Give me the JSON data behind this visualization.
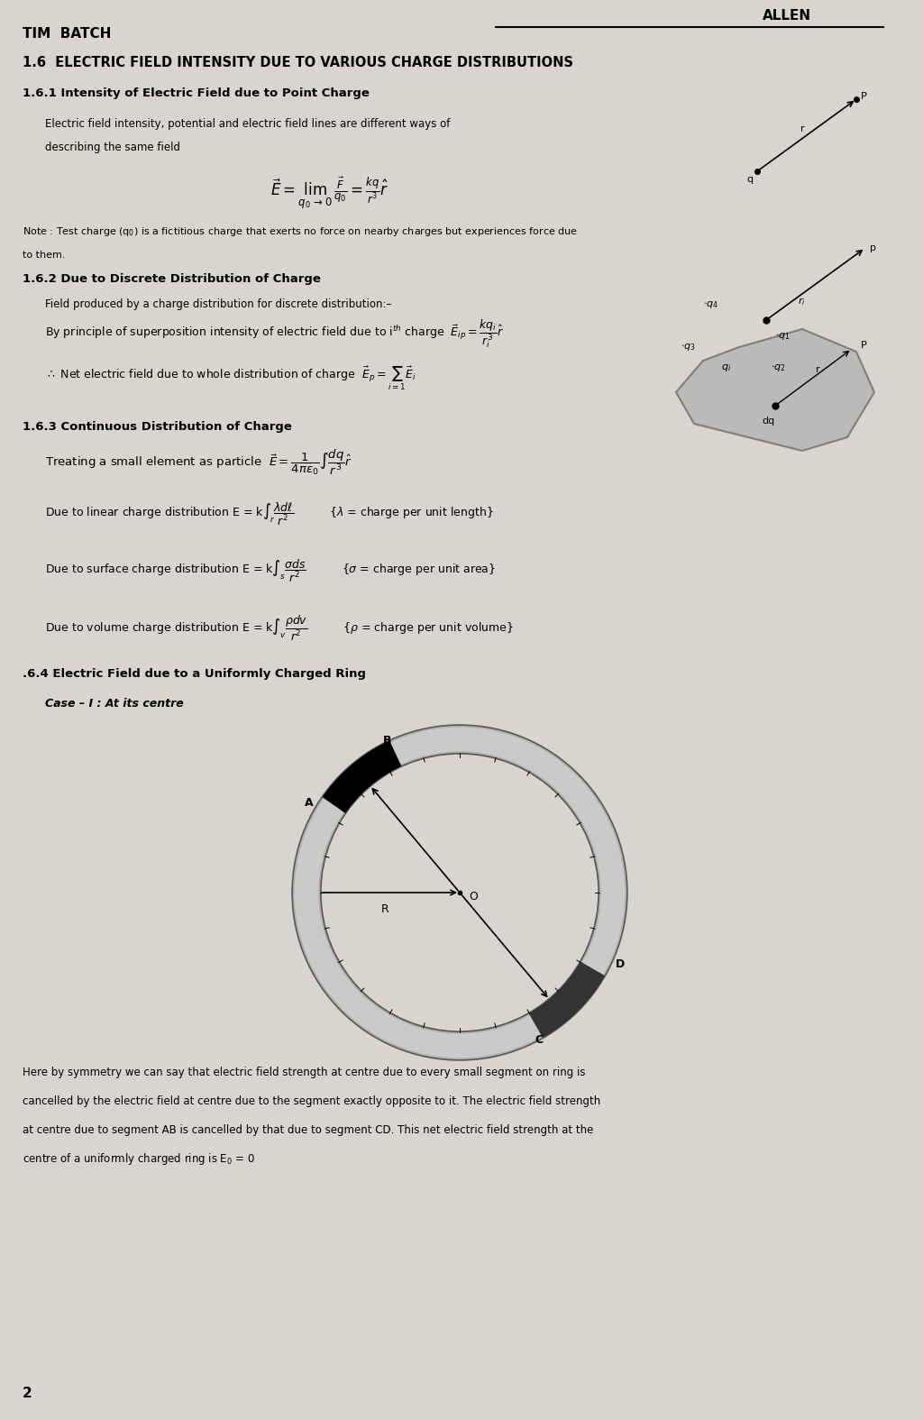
{
  "bg_color": "#d8d4ce",
  "page_bg": "#d8d4ce",
  "title_allen": "ALLEN",
  "title_batch": "TIM  BATCH",
  "header_text": "1.6  ELECTRIC FIELD INTENSITY DUE TO VARIOUS CHARGE DISTRIBUTIONS",
  "sub1": "1.6.1 Intensity of Electric Field due to Point Charge",
  "para1": "Electric field intensity, potential and electric field lines are different ways of\ndescribing the same field",
  "eq1": "$\\vec{E} = \\lim_{q_0 \\to 0} \\frac{\\vec{F}}{q_0} = \\frac{kq}{r^3}\\hat{r}$",
  "note1": "Note : Test charge (q$_0$) is a fictitious charge that exerts no force on nearby charges but experiences force due\nto them.",
  "sub2": "1.6.2 Due to Discrete Distribution of Charge",
  "para2": "Field produced by a charge distribution for discrete distribution:–",
  "eq2": "$\\vec{E}_{ip} = \\frac{kq_i}{r_i^3}\\hat{r}$",
  "para2b": "By principle of superposition intensity of electric field due to i$^{th}$ charge  $\\vec{E}_{ip} = \\frac{kq_i}{r_i^3}\\hat{r}$",
  "para3": "$\\therefore$ Net electric field due to whole distribution of charge  $\\vec{E}_p = \\sum_{i=1} \\vec{E}_i$",
  "sub3": "1.6.3 Continuous Distribution of Charge",
  "para4": "Treating a small element as particle  $\\vec{E} = \\frac{1}{4\\pi\\epsilon_0}\\int\\frac{dq}{r^3}\\hat{r}$",
  "para5": "Due to linear charge distribution E = k$\\int_r \\frac{\\lambda d\\ell}{r^2}$          {$\\lambda$ = charge per unit length}",
  "para6": "Due to surface charge distribution E = k$\\int_s \\frac{\\sigma ds}{r^2}$          {$\\sigma$ = charge per unit area}",
  "para7": "Due to volume charge distribution E = k$\\int_v \\frac{\\rho dv}{r^2}$          {$\\rho$ = charge per unit volume}",
  "sub4": ".6.4 Electric Field due to a Uniformly Charged Ring",
  "case1": "Case – I : At its centre",
  "footer": "2"
}
